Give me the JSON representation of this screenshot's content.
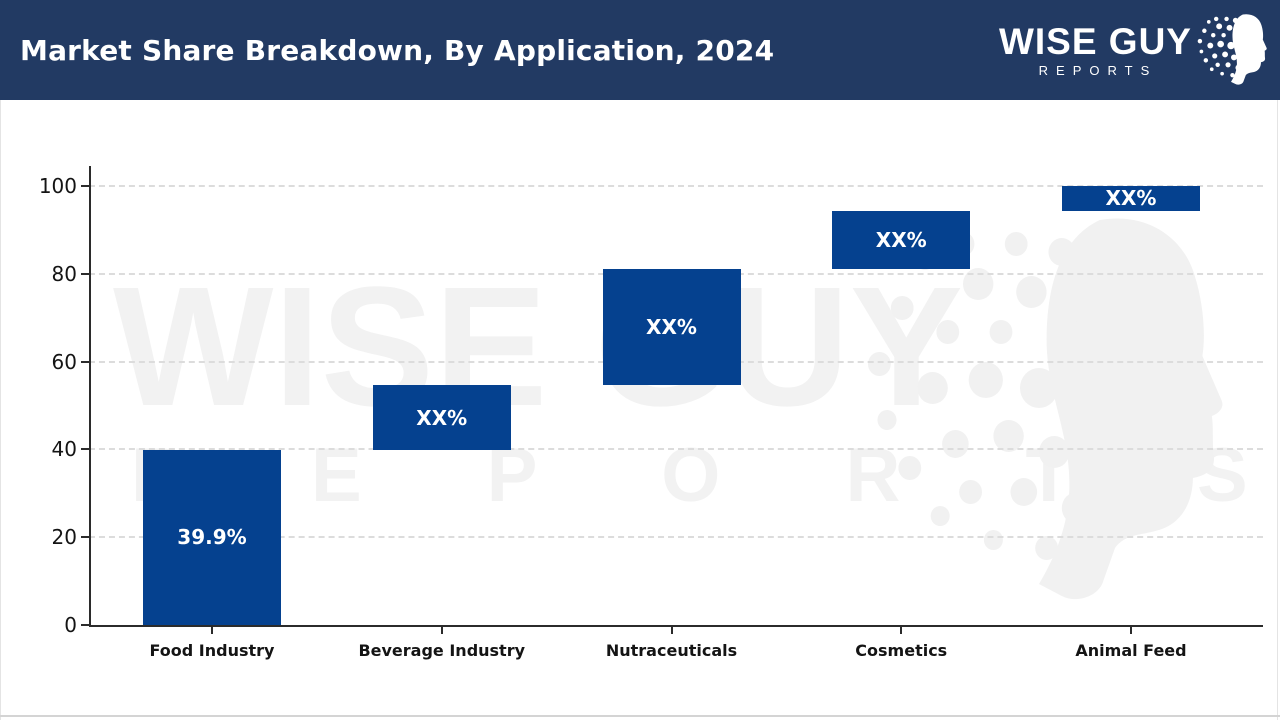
{
  "header": {
    "title": "Market Share Breakdown, By Application, 2024",
    "brand": {
      "line1": "WISE GUY",
      "line2": "REPORTS"
    },
    "bg_color": "#223a63"
  },
  "watermark": {
    "line1": "WISE GUY",
    "line2": "R E P O R T S"
  },
  "chart_data": {
    "type": "bar",
    "subtype": "waterfall",
    "title": "Market Share Breakdown, By Application, 2024",
    "categories": [
      "Food Industry",
      "Beverage Industry",
      "Nutraceuticals",
      "Cosmetics",
      "Animal Feed"
    ],
    "segments": [
      {
        "category": "Food Industry",
        "start": 0,
        "end": 39.9,
        "value": 39.9,
        "label": "39.9%"
      },
      {
        "category": "Beverage Industry",
        "start": 39.9,
        "end": 54.6,
        "value": 14.7,
        "label": "XX%"
      },
      {
        "category": "Nutraceuticals",
        "start": 54.6,
        "end": 81.1,
        "value": 26.5,
        "label": "XX%"
      },
      {
        "category": "Cosmetics",
        "start": 81.1,
        "end": 94.4,
        "value": 13.3,
        "label": "XX%"
      },
      {
        "category": "Animal Feed",
        "start": 94.4,
        "end": 100,
        "value": 5.6,
        "label": "XX%"
      }
    ],
    "y_ticks": [
      0,
      20,
      40,
      60,
      80,
      100
    ],
    "ylim": [
      0,
      104
    ],
    "bar_color": "#05418f",
    "label_color": "#ffffff",
    "grid": "dashed-horizontal",
    "legend": "none"
  }
}
